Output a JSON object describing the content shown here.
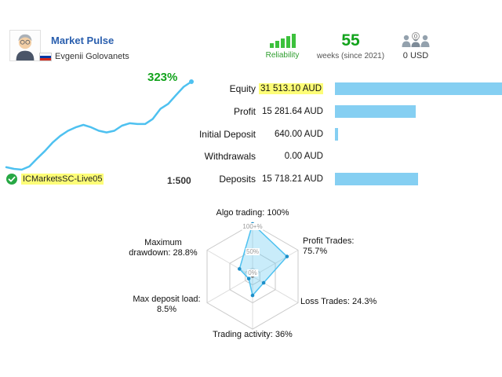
{
  "colors": {
    "accent_green": "#12a31c",
    "reliability_green": "#3cc13c",
    "line_blue": "#4ec1f0",
    "bar_blue": "#85cff2",
    "highlight_yellow": "#fdfd77",
    "title_blue": "#2a5fae"
  },
  "header": {
    "title": "Market Pulse",
    "author": "Evgenii Golovanets",
    "reliability_label": "Reliability",
    "weeks_value": "55",
    "weeks_label": "weeks (since 2021)",
    "subscribers_badge": "0",
    "price": "0 USD"
  },
  "growth": {
    "percent_label": "323%",
    "broker": "ICMarketsSC-Live05",
    "leverage": "1:500"
  },
  "stats": {
    "rows": [
      {
        "label": "Equity",
        "value": "31 513.10 AUD",
        "bar_percent": 100,
        "highlight": true
      },
      {
        "label": "Profit",
        "value": "15 281.64 AUD",
        "bar_percent": 48.5,
        "highlight": false
      },
      {
        "label": "Initial Deposit",
        "value": "640.00 AUD",
        "bar_percent": 2,
        "highlight": false
      },
      {
        "label": "Withdrawals",
        "value": "0.00 AUD",
        "bar_percent": 0,
        "highlight": false
      },
      {
        "label": "Deposits",
        "value": "15 718.21 AUD",
        "bar_percent": 49.9,
        "highlight": false
      }
    ]
  },
  "radar_labels": {
    "top": "Algo trading: 100%",
    "right_top_1": "Profit Trades:",
    "right_top_2": "75.7%",
    "right_bottom": "Loss Trades: 24.3%",
    "bottom": "Trading activity: 36%",
    "left_bottom_1": "Max deposit load:",
    "left_bottom_2": "8.5%",
    "left_top_1": "Maximum",
    "left_top_2": "drawdown: 28.8%"
  },
  "ring_labels": [
    "100+%",
    "50%",
    "0%"
  ],
  "chart_data": [
    {
      "type": "line",
      "title": "Account growth",
      "unit": "%",
      "final_value": 323,
      "color": "#4ec1f0",
      "values": [
        6,
        0,
        -3,
        9,
        38,
        66,
        97,
        122,
        141,
        154,
        163,
        154,
        141,
        135,
        141,
        160,
        169,
        166,
        166,
        185,
        223,
        241,
        273,
        304,
        323
      ]
    },
    {
      "type": "radar",
      "axes": [
        "Algo trading",
        "Profit Trades",
        "Loss Trades",
        "Trading activity",
        "Max deposit load",
        "Maximum drawdown"
      ],
      "values": [
        100,
        75.7,
        24.3,
        36,
        8.5,
        28.8
      ],
      "max": 100,
      "ring_fractions": [
        1,
        0.5,
        0.16
      ],
      "rings": [
        "100+%",
        "50%",
        "0%"
      ]
    }
  ]
}
